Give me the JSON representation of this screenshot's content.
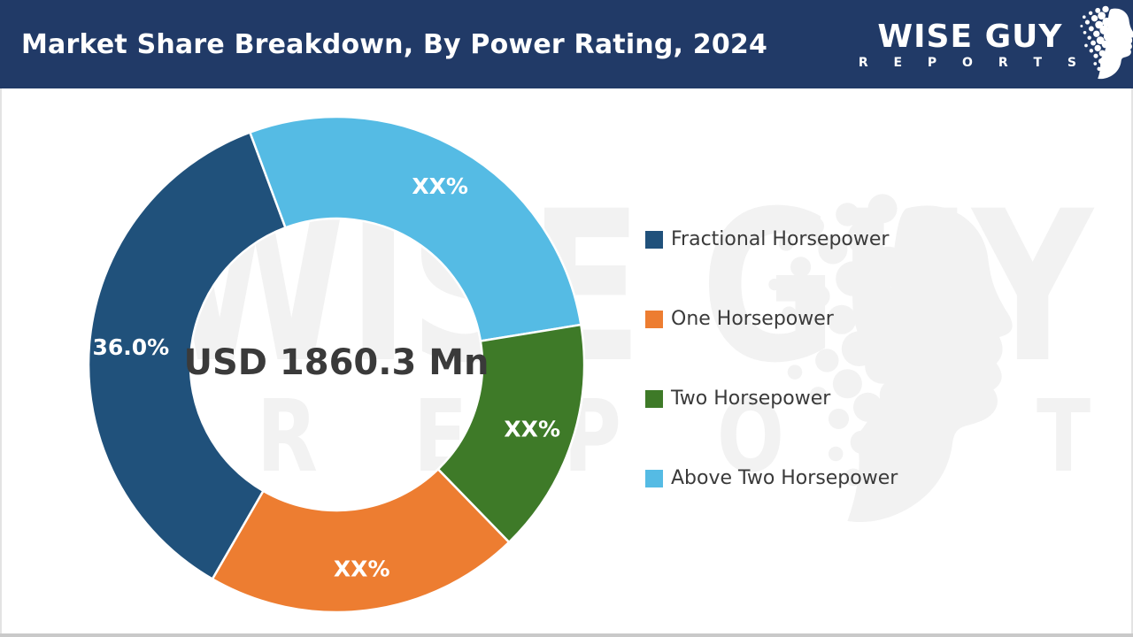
{
  "header": {
    "title": "Market Share Breakdown, By Power Rating, 2024",
    "logo": {
      "line1": "WISE GUY",
      "line2": "R E P O R T S"
    }
  },
  "watermark": {
    "line1": "WISE GUY",
    "line2": "R E P O R T S"
  },
  "chart_data": {
    "type": "donut",
    "title": "Market Share Breakdown, By Power Rating, 2024",
    "center_label": "USD 1860.3 Mn",
    "start_angle_deg": 210,
    "clockwise": true,
    "legend_position": "right",
    "slices": [
      {
        "label": "Fractional Horsepower",
        "pct": 36.0,
        "data_label": "36.0%",
        "color": "#20517b"
      },
      {
        "label": "One Horsepower",
        "pct": 20.6,
        "data_label": "XX%",
        "color": "#ed7d31"
      },
      {
        "label": "Two Horsepower",
        "pct": 15.3,
        "data_label": "XX%",
        "color": "#3e7a28"
      },
      {
        "label": "Above Two Horsepower",
        "pct": 28.1,
        "data_label": "XX%",
        "color": "#55bbe4"
      }
    ],
    "draw_order": [
      0,
      3,
      2,
      1
    ]
  },
  "colors": {
    "header_bg": "#213a67",
    "text_dark": "#3a3a3a",
    "watermark": "#f2f2f2",
    "bottom_border": "#c9c9c9"
  }
}
